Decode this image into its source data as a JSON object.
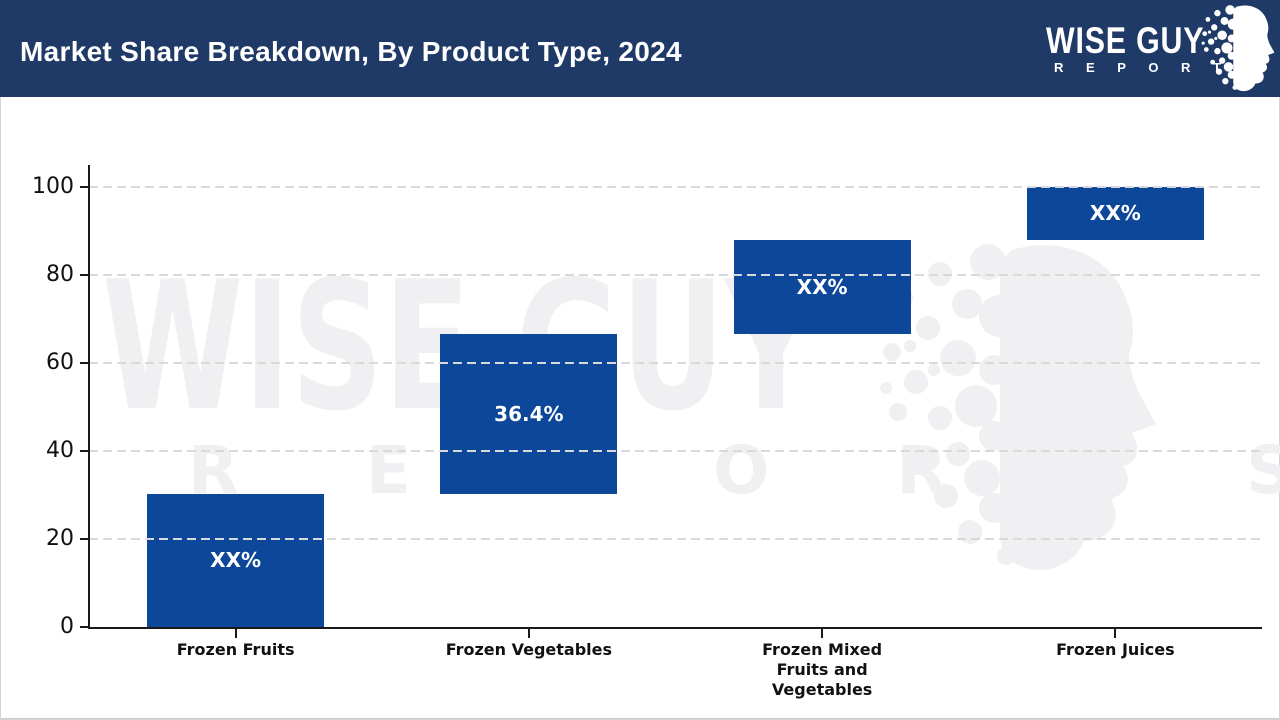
{
  "header": {
    "title": "Market Share Breakdown, By Product Type, 2024",
    "logo": {
      "primary": "WISE GUY",
      "secondary": "R E P O R T S"
    }
  },
  "watermark": {
    "primary": "WISE GUY",
    "secondary": "R E P O R T S"
  },
  "colors": {
    "header_bg": "#203a67",
    "bar": "#0d4799",
    "bar_label": "#ffffff",
    "gridline": "#d9d9d9",
    "axis": "#1a1a1a",
    "watermark": "#f0f0f2"
  },
  "chart_data": {
    "type": "bar",
    "subtype": "waterfall",
    "title": "Market Share Breakdown, By Product Type, 2024",
    "xlabel": "",
    "ylabel": "",
    "ylim": [
      0,
      100
    ],
    "yticks": [
      0,
      20,
      40,
      60,
      80,
      100
    ],
    "grid": "horizontal-dashed",
    "legend": "none",
    "categories": [
      "Frozen Fruits",
      "Frozen Vegetables",
      "Frozen Mixed\nFruits and\nVegetables",
      "Frozen Juices"
    ],
    "series": [
      {
        "name": "Market Share (%)",
        "segments": [
          {
            "category": "Frozen Fruits",
            "start": 0,
            "end": 30.3,
            "label": "XX%"
          },
          {
            "category": "Frozen Vegetables",
            "start": 30.3,
            "end": 66.7,
            "label": "36.4%"
          },
          {
            "category": "Frozen Mixed Fruits and Vegetables",
            "start": 66.7,
            "end": 88.0,
            "label": "XX%"
          },
          {
            "category": "Frozen Juices",
            "start": 88.0,
            "end": 100.0,
            "label": "XX%"
          }
        ]
      }
    ],
    "bar_color": "#0d4799",
    "bar_label_color": "#ffffff"
  }
}
